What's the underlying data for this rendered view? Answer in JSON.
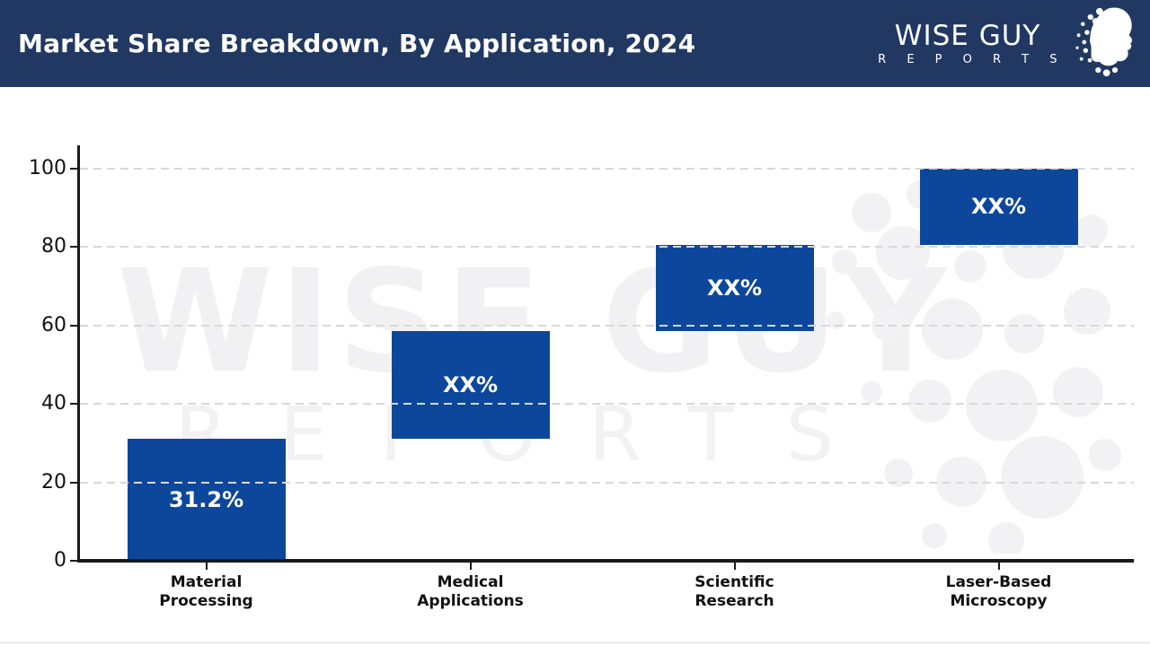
{
  "header": {
    "title": "Market Share Breakdown, By Application, 2024",
    "logo": {
      "line1": "WISE GUY",
      "line2": "R E P O R T S",
      "icon": "dotted-face-profile"
    }
  },
  "watermark": {
    "line1": "WISE GUY",
    "line2": "REPORTS"
  },
  "colors": {
    "header_bg": "#213863",
    "bar": "#0d479c",
    "gridline": "#d8d8d8",
    "axis": "#1a1a1a",
    "bar_label": "#ffffff",
    "watermark": "#f1f1f3"
  },
  "chart_data": {
    "type": "bar",
    "subtype": "waterfall",
    "title": "Market Share Breakdown, By Application, 2024",
    "categories": [
      "Material Processing",
      "Medical Applications",
      "Scientific Research",
      "Laser-Based Microscopy"
    ],
    "segments": [
      {
        "category": "Material Processing",
        "start": 0,
        "end": 31.2,
        "label": "31.2%"
      },
      {
        "category": "Medical Applications",
        "start": 31.2,
        "end": 58.6,
        "label": "XX%"
      },
      {
        "category": "Scientific Research",
        "start": 58.6,
        "end": 80.5,
        "label": "XX%"
      },
      {
        "category": "Laser-Based Microscopy",
        "start": 80.5,
        "end": 100,
        "label": "XX%"
      }
    ],
    "xlabel": "",
    "ylabel": "",
    "ylim": [
      0,
      100
    ],
    "yticks": [
      0,
      20,
      40,
      60,
      80,
      100
    ],
    "grid": "dashed-horizontal",
    "legend": "none"
  }
}
